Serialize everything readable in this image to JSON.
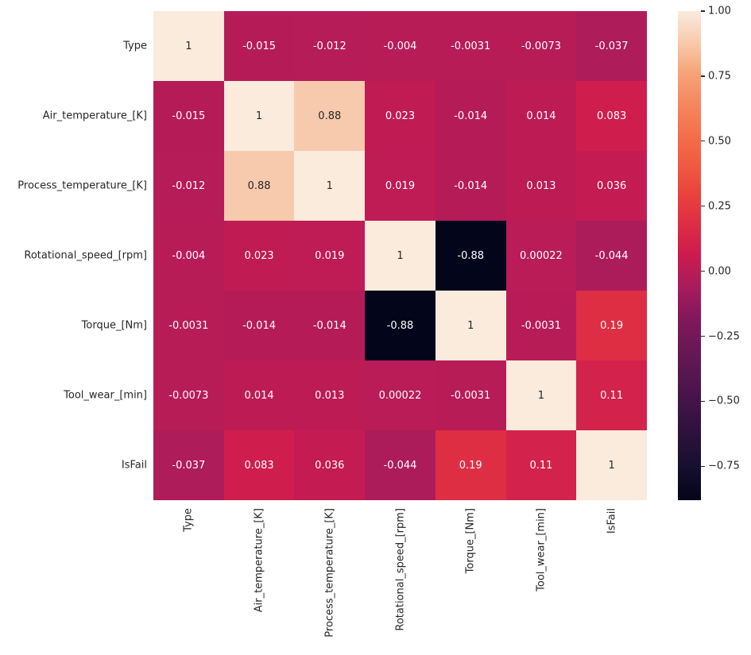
{
  "chart_data": {
    "type": "heatmap",
    "title": "",
    "xlabel": "",
    "ylabel": "",
    "categories": [
      "Type",
      "Air_temperature_[K]",
      "Process_temperature_[K]",
      "Rotational_speed_[rpm]",
      "Torque_[Nm]",
      "Tool_wear_[min]",
      "IsFail"
    ],
    "matrix": [
      [
        "1",
        "-0.015",
        "-0.012",
        "-0.004",
        "-0.0031",
        "-0.0073",
        "-0.037"
      ],
      [
        "-0.015",
        "1",
        "0.88",
        "0.023",
        "-0.014",
        "0.014",
        "0.083"
      ],
      [
        "-0.012",
        "0.88",
        "1",
        "0.019",
        "-0.014",
        "0.013",
        "0.036"
      ],
      [
        "-0.004",
        "0.023",
        "0.019",
        "1",
        "-0.88",
        "0.00022",
        "-0.044"
      ],
      [
        "-0.0031",
        "-0.014",
        "-0.014",
        "-0.88",
        "1",
        "-0.0031",
        "0.19"
      ],
      [
        "-0.0073",
        "0.014",
        "0.013",
        "0.00022",
        "-0.0031",
        "1",
        "0.11"
      ],
      [
        "-0.037",
        "0.083",
        "0.036",
        "-0.044",
        "0.19",
        "0.11",
        "1"
      ]
    ],
    "vmin": -0.88,
    "vmax": 1.0,
    "grid": false,
    "legend_position": "right-colorbar",
    "colorbar": {
      "ticks": [
        {
          "label": "1.00",
          "value": 1.0
        },
        {
          "label": "0.75",
          "value": 0.75
        },
        {
          "label": "0.50",
          "value": 0.5
        },
        {
          "label": "0.25",
          "value": 0.25
        },
        {
          "label": "0.00",
          "value": 0.0
        },
        {
          "label": "−0.25",
          "value": -0.25
        },
        {
          "label": "−0.50",
          "value": -0.5
        },
        {
          "label": "−0.75",
          "value": -0.75
        }
      ]
    },
    "colormap": {
      "name": "rocket",
      "stops": [
        [
          0.0,
          "#03051A"
        ],
        [
          0.075,
          "#19102F"
        ],
        [
          0.15,
          "#31123F"
        ],
        [
          0.225,
          "#4B154B"
        ],
        [
          0.3,
          "#661754"
        ],
        [
          0.375,
          "#84185B"
        ],
        [
          0.4375,
          "#A81C5C"
        ],
        [
          0.5,
          "#CB1B4F"
        ],
        [
          0.5625,
          "#DD2C45"
        ],
        [
          0.625,
          "#E9433C"
        ],
        [
          0.6875,
          "#F05B42"
        ],
        [
          0.75,
          "#F3704B"
        ],
        [
          0.8125,
          "#F58860"
        ],
        [
          0.875,
          "#F6A477"
        ],
        [
          0.9375,
          "#F8CBAE"
        ],
        [
          1.0,
          "#FAEBDD"
        ]
      ]
    },
    "annotation_colors": {
      "light_cell_text": "#262626",
      "dark_cell_text": "#ffffff",
      "dark_text_threshold": 0.85
    },
    "axis_label_color": "#262626",
    "background_color": "#ffffff"
  }
}
